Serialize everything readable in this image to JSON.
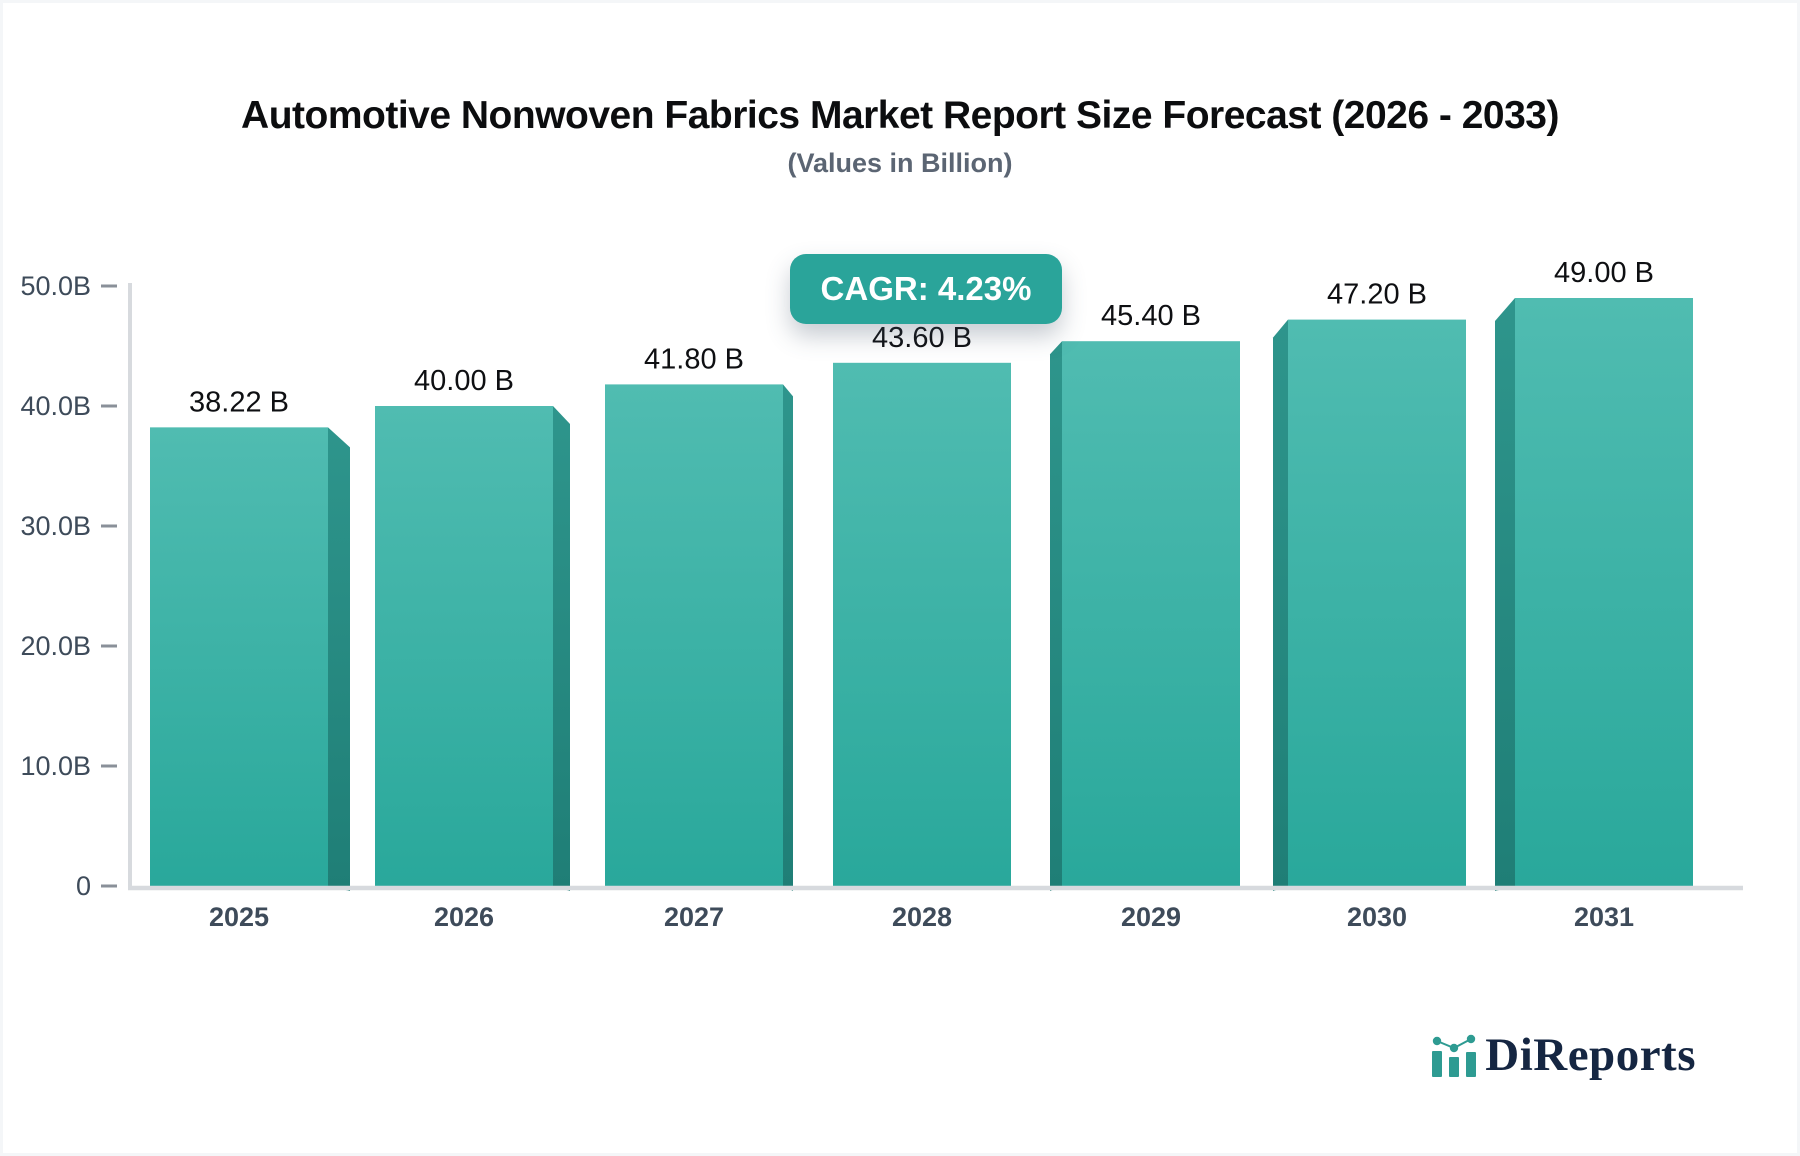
{
  "page": {
    "title": "Automotive Nonwoven Fabrics Market Report Size Forecast (2026 - 2033)",
    "subtitle": "(Values in Billion)",
    "cagr_label": "CAGR: 4.23%",
    "brand": {
      "name": "DiReports",
      "icon": "mini-bar-line-chart-logo-icon"
    }
  },
  "colors": {
    "bar_face_top": "#50bcb1",
    "bar_face_bottom": "#29a89b",
    "bar_side_top": "#2e958c",
    "bar_side_bottom": "#1f7e76",
    "badge_bg": "#2aa49a",
    "badge_text": "#ffffff",
    "axis_line": "#d7dade",
    "tick": "#8a9099",
    "axis_label": "#3e4b5a",
    "value_label": "#0e0f12",
    "title": "#0c0d0f",
    "subtitle": "#5b6573",
    "logo_text": "#152642",
    "logo_icon": "#2e9b92"
  },
  "chart_data": {
    "type": "bar",
    "style": "3d-pseudo-perspective",
    "title": "Automotive Nonwoven Fabrics Market Report Size Forecast (2026 - 2033)",
    "subtitle": "(Values in Billion)",
    "annotation": "CAGR: 4.23%",
    "categories": [
      "2025",
      "2026",
      "2027",
      "2028",
      "2029",
      "2030",
      "2031"
    ],
    "values": [
      38.22,
      40.0,
      41.8,
      43.6,
      45.4,
      47.2,
      49.0
    ],
    "value_labels": [
      "38.22 B",
      "40.00 B",
      "41.80 B",
      "43.60 B",
      "45.40 B",
      "47.20 B",
      "49.00 B"
    ],
    "unit": "Billion",
    "xlabel": "",
    "ylabel": "",
    "ylim": [
      0,
      50
    ],
    "y_tick_values": [
      0,
      10,
      20,
      30,
      40,
      50
    ],
    "y_tick_labels": [
      "0",
      "10.0B",
      "20.0B",
      "30.0B",
      "40.0B",
      "50.0B"
    ],
    "grid": false,
    "legend": false
  }
}
